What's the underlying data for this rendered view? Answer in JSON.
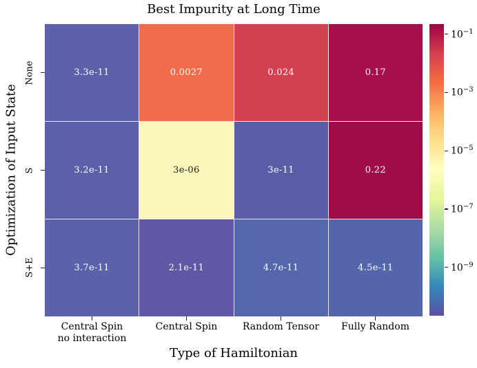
{
  "chart_data": {
    "type": "heatmap",
    "title": "Best Impurity at Long Time",
    "xlabel": "Type of Hamiltonian",
    "ylabel": "Optimization of Input State",
    "x_categories": [
      "Central Spin\nno interaction",
      "Central Spin",
      "Random Tensor",
      "Fully Random"
    ],
    "y_categories": [
      "None",
      "S",
      "S+E"
    ],
    "values": [
      [
        3.3e-11,
        0.0027,
        0.024,
        0.17
      ],
      [
        3.2e-11,
        3e-06,
        3e-11,
        0.22
      ],
      [
        3.7e-11,
        2.1e-11,
        4.7e-11,
        4.5e-11
      ]
    ],
    "labels": [
      [
        "3.3e-11",
        "0.0027",
        "0.024",
        "0.17"
      ],
      [
        "3.2e-11",
        "3e-06",
        "3e-11",
        "0.22"
      ],
      [
        "3.7e-11",
        "2.1e-11",
        "4.7e-11",
        "4.5e-11"
      ]
    ],
    "cell_colors": [
      [
        "#5c61a9",
        "#f06c4b",
        "#d34150",
        "#a50f4b"
      ],
      [
        "#5b60a8",
        "#fbf7ba",
        "#5a5ea7",
        "#9f0c48"
      ],
      [
        "#5a62aa",
        "#5f58a5",
        "#5566ae",
        "#5565ad"
      ]
    ],
    "text_colors": [
      [
        "#ffffff",
        "#ffffff",
        "#ffffff",
        "#ffffff"
      ],
      [
        "#ffffff",
        "#1a1a1a",
        "#ffffff",
        "#ffffff"
      ],
      [
        "#ffffff",
        "#ffffff",
        "#ffffff",
        "#ffffff"
      ]
    ],
    "scale": "log",
    "vmin": 2.1e-11,
    "vmax": 0.22,
    "colormap": "Spectral_r",
    "colormap_stops": [
      "#5e4fa2",
      "#3288bd",
      "#66c2a5",
      "#abdda4",
      "#e6f598",
      "#ffffbf",
      "#fee08b",
      "#fdae61",
      "#f46d43",
      "#d53e4f",
      "#9e0142"
    ],
    "colorbar": {
      "tick_base": "10",
      "ticks": [
        {
          "value": 0.1,
          "exponent": "−1"
        },
        {
          "value": 0.001,
          "exponent": "−3"
        },
        {
          "value": 1e-05,
          "exponent": "−5"
        },
        {
          "value": 1e-07,
          "exponent": "−7"
        },
        {
          "value": 1e-09,
          "exponent": "−9"
        }
      ]
    },
    "legend_position": "right",
    "grid_lines": "thin light separators between cells"
  }
}
